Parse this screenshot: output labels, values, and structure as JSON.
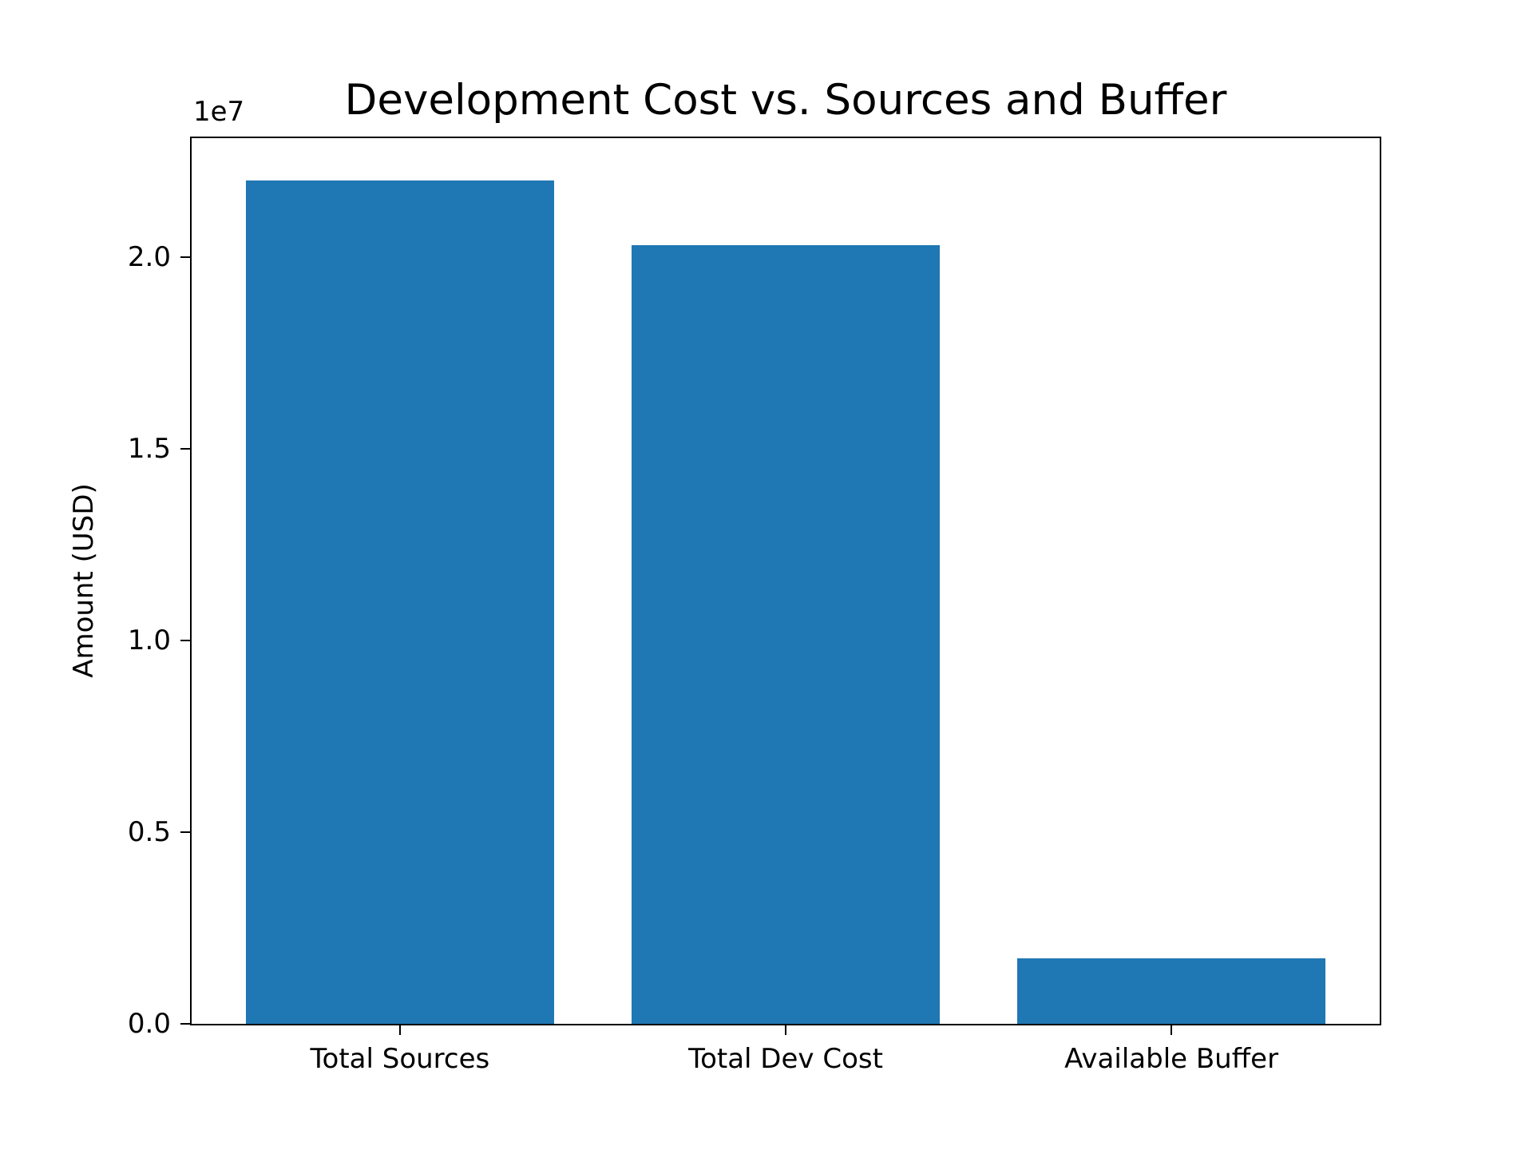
{
  "chart_data": {
    "type": "bar",
    "title": "Development Cost vs. Sources and Buffer",
    "xlabel": "",
    "ylabel": "Amount (USD)",
    "offset_label": "1e7",
    "categories": [
      "Total Sources",
      "Total Dev Cost",
      "Available Buffer"
    ],
    "values": [
      22000000,
      20300000,
      1700000
    ],
    "bar_color": "#1f77b4",
    "axis_color": "#000000",
    "background_color": "#ffffff",
    "ylim": [
      0,
      23100000
    ],
    "xlim": [
      -0.54,
      2.54
    ],
    "bar_width": 0.8,
    "yticks": {
      "values": [
        0,
        5000000,
        10000000,
        15000000,
        20000000
      ],
      "labels": [
        "0.0",
        "0.5",
        "1.0",
        "1.5",
        "2.0"
      ]
    },
    "grid": false,
    "legend": null
  }
}
